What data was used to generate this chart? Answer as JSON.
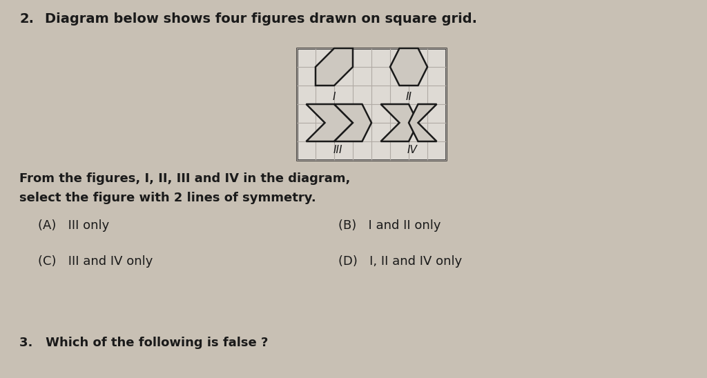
{
  "title_num": "2.",
  "title_text": "Diagram below shows four figures drawn on square grid.",
  "subtitle1": "From the figures, I, II, III and IV in the diagram,",
  "subtitle2": "select the figure with 2 lines of symmetry.",
  "options": [
    "(A)   III only",
    "(B)   I and II only",
    "(C)   III and IV only",
    "(D)   I, II and IV only"
  ],
  "next_q": "3.   Which of the following is false ?",
  "bg_color": "#c8c0b4",
  "grid_bg": "#dedad4",
  "shape_fill": "#cdc8c0",
  "shape_edge": "#1a1a1a",
  "grid_color": "#b0aaa4",
  "text_color": "#1a1a1a"
}
